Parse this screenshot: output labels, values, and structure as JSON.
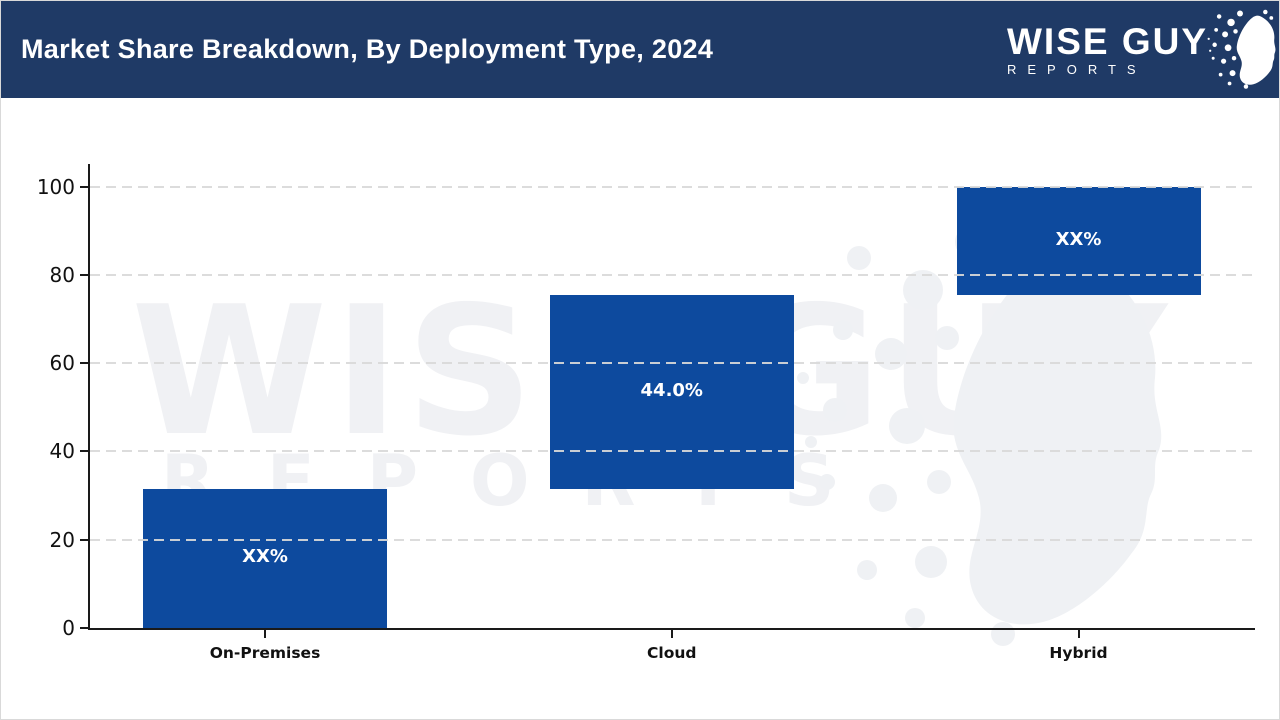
{
  "header": {
    "title": "Market Share Breakdown, By Deployment Type, 2024",
    "logo": {
      "line1": "WISE GUY",
      "line2": "REPORTS"
    }
  },
  "watermark": {
    "line1": "WISE GUY",
    "line2": "REPORTS"
  },
  "colors": {
    "header_bg": "#1f3a66",
    "bar": "#0d4a9e",
    "grid": "#d9d9d9",
    "axis": "#1a1a1a",
    "bar_label": "#ffffff",
    "title_text": "#ffffff",
    "watermark": "#f0f1f4"
  },
  "chart_data": {
    "type": "bar",
    "subtype": "waterfall",
    "title": "Market Share Breakdown, By Deployment Type, 2024",
    "categories": [
      "On-Premises",
      "Cloud",
      "Hybrid"
    ],
    "segments": [
      {
        "category": "On-Premises",
        "start": 0,
        "end": 31.5,
        "label": "XX%"
      },
      {
        "category": "Cloud",
        "start": 31.5,
        "end": 75.5,
        "label": "44.0%"
      },
      {
        "category": "Hybrid",
        "start": 75.5,
        "end": 100,
        "label": "XX%"
      }
    ],
    "xlabel": "",
    "ylabel": "",
    "y_ticks": [
      0,
      20,
      40,
      60,
      80,
      100
    ],
    "ylim": [
      0,
      105
    ],
    "grid": "horizontal-dashed",
    "legend": "none",
    "bar_value_note": "Cloud segment labeled 44.0%; On-Premises and Hybrid labels redacted as XX%"
  }
}
